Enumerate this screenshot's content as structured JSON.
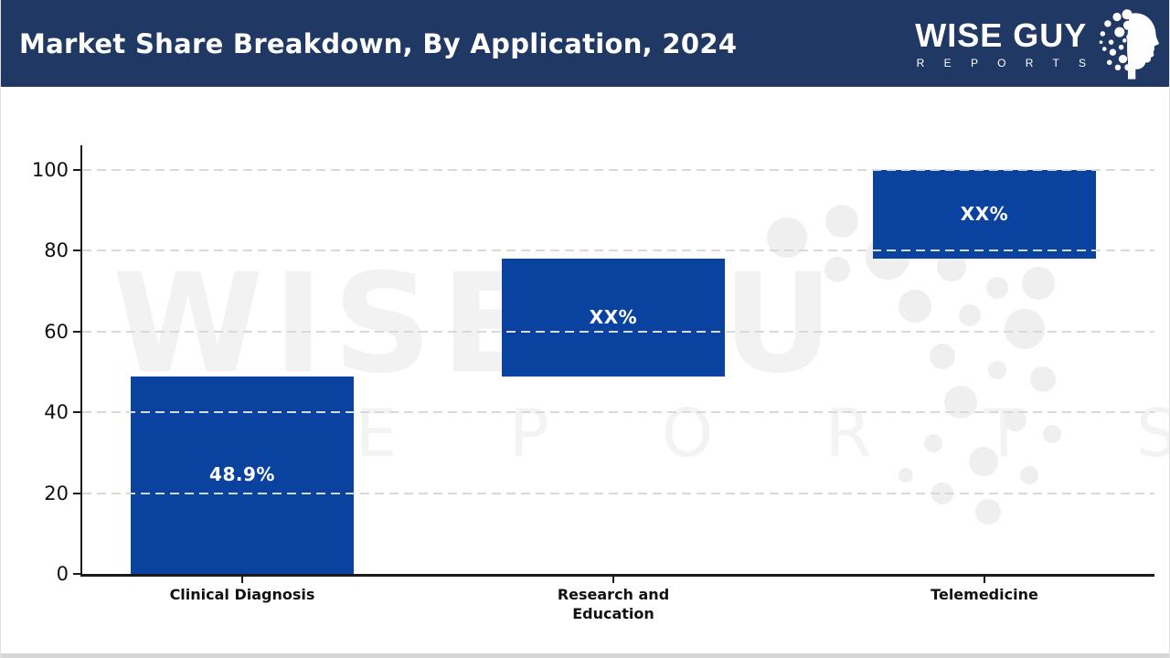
{
  "header": {
    "title": "Market Share Breakdown, By Application, 2024",
    "logo": {
      "wordmark": "WISE GUY",
      "subtext": "R E P O R T S"
    }
  },
  "watermark": {
    "wordmark": "WISE GU",
    "subtext": "R E P O R T S"
  },
  "chart_data": {
    "type": "bar",
    "subtype": "floating-segment-waterfall",
    "title": "Market Share Breakdown, By Application, 2024",
    "categories": [
      "Clinical Diagnosis",
      "Research and Education",
      "Telemedicine"
    ],
    "series": [
      {
        "name": "Market Share (%)",
        "segments": [
          {
            "category": "Clinical Diagnosis",
            "start": 0,
            "end": 48.9,
            "label": "48.9%"
          },
          {
            "category": "Research and Education",
            "start": 48.9,
            "end": 78,
            "label": "XX%"
          },
          {
            "category": "Telemedicine",
            "start": 78,
            "end": 100,
            "label": "XX%"
          }
        ]
      }
    ],
    "yticks": [
      0,
      20,
      40,
      60,
      80,
      100
    ],
    "ylim": [
      0,
      106
    ],
    "xlabel": "",
    "ylabel": "",
    "grid": "horizontal-dashed",
    "legend": "none",
    "colors": {
      "bar": "#0a42a0",
      "header_background": "#1f3864",
      "grid": "#d9d9d9",
      "axis": "#1a1a1a",
      "value_label": "#ffffff",
      "tick_label": "#111111"
    }
  }
}
